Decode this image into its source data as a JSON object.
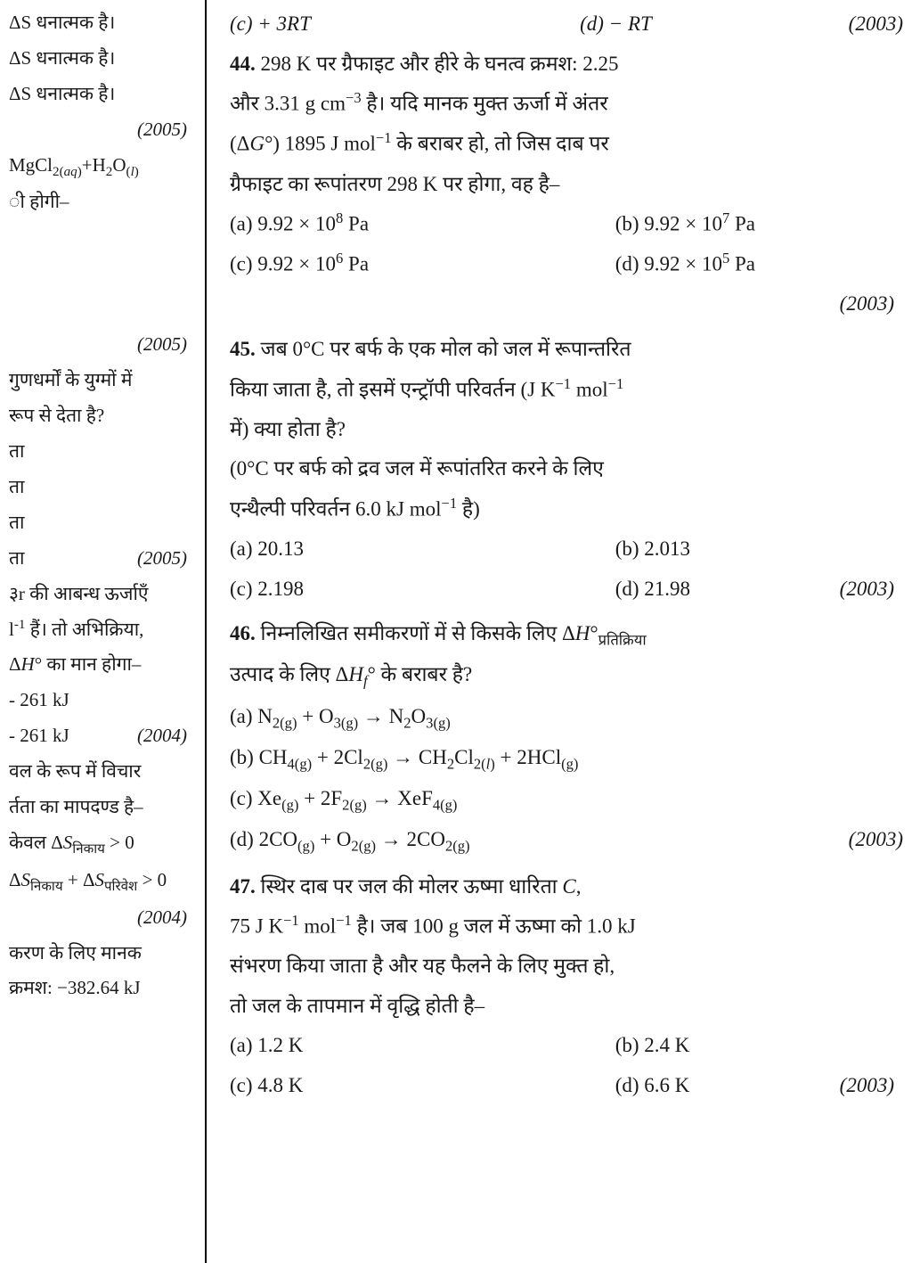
{
  "leftCol": {
    "l1": "ΔS धनात्मक है।",
    "l2": "ΔS धनात्मक है।",
    "l3": "ΔS धनात्मक है।",
    "yr1": "(2005)",
    "l4_html": "MgCl<sub>2(<span class='italic'>aq</span>)</sub>+H<sub>2</sub>O<sub>(<span class='italic'>l</span>)</sub>",
    "l5": "ी होगी–",
    "yr2": "(2005)",
    "l6": " गुणधर्मों के युग्मों में",
    "l7": "रूप से देता है?",
    "l8": "ता",
    "l9": "ता",
    "l10": "ता",
    "l11": "ता",
    "yr3": "(2005)",
    "l12": "३r की आबन्ध ऊर्जाएँ",
    "l13_html": "l<sup>-1</sup> हैं। तो अभिक्रिया,",
    "l14_html": "Δ<span class='italic'>H</span>° का मान होगा–",
    "l15": "- 261 kJ",
    "l16": "- 261 kJ",
    "yr4": "(2004)",
    "l17": "वल के रूप में विचार",
    "l18": "र्तता का मापदण्ड है–",
    "l19_html": "केवल Δ<span class='italic'>S</span><sub>निकाय</sub> > 0",
    "l20_html": "Δ<span class='italic'>S</span><sub>निकाय</sub> + Δ<span class='italic'>S</span><sub>परिवेश</sub> > 0",
    "yr5": "(2004)",
    "l21": "करण के लिए मानक",
    "l22": "क्रमश: −382.64 kJ"
  },
  "q43": {
    "c": "(c) + 3RT",
    "d": "(d) − RT",
    "yr": "(2003)"
  },
  "q44": {
    "num": "44.",
    "t1": "298 K पर ग्रैफाइट और हीरे के घनत्व क्रमश: 2.25",
    "t2_html": "और 3.31 g cm<sup>−3</sup> है। यदि मानक मुक्त ऊर्जा में अंतर",
    "t3_html": "(Δ<span class='italic'>G</span>°) 1895 J mol<sup>−1</sup> के बराबर हो, तो जिस दाब पर",
    "t4": "ग्रैफाइट का रूपांतरण 298 K पर होगा, वह है–",
    "a_html": "(a) 9.92 × 10<sup>8</sup> Pa",
    "b_html": "(b) 9.92 × 10<sup>7</sup> Pa",
    "c_html": "(c) 9.92 × 10<sup>6</sup> Pa",
    "d_html": "(d) 9.92 × 10<sup>5</sup> Pa",
    "yr": "(2003)"
  },
  "q45": {
    "num": "45.",
    "t1": "जब 0°C पर बर्फ के एक मोल को जल में रूपान्तरित",
    "t2_html": "किया जाता है, तो इसमें एन्ट्रॉपी परिवर्तन (J K<sup>−1</sup> mol<sup>−1</sup>",
    "t3": "में) क्या होता है?",
    "t4": "(0°C पर बर्फ को द्रव जल में रूपांतरित करने के लिए",
    "t5_html": "एन्थैल्पी परिवर्तन 6.0 kJ mol<sup>−1</sup> है)",
    "a": "(a) 20.13",
    "b": "(b) 2.013",
    "c": "(c) 2.198",
    "d": "(d) 21.98",
    "yr": "(2003)"
  },
  "q46": {
    "num": "46.",
    "t1_html": "निम्नलिखित समीकरणों में से किसके लिए Δ<span class='italic'>H</span>°<sub>प्रतिक्रिया</sub>",
    "t2_html": "उत्पाद के लिए Δ<span class='italic'>H</span><sub><span class='italic'>f</span></sub>° के बराबर है?",
    "a_html": "(a) N<sub>2(g)</sub> + O<sub>3(g)</sub> → N<sub>2</sub>O<sub>3(g)</sub>",
    "b_html": "(b) CH<sub>4(g)</sub> + 2Cl<sub>2(g)</sub> → CH<sub>2</sub>Cl<sub>2(<span class='italic'>l</span>)</sub> + 2HCl<sub>(g)</sub>",
    "c_html": "(c) Xe<sub>(g)</sub> + 2F<sub>2(g)</sub> → XeF<sub>4(g)</sub>",
    "d_html": "(d) 2CO<sub>(g)</sub> + O<sub>2(g)</sub> → 2CO<sub>2(g)</sub>",
    "yr": "(2003)"
  },
  "q47": {
    "num": "47.",
    "t1_html": "स्थिर दाब पर जल की मोलर ऊष्मा धारिता <span class='italic'>C</span>,",
    "t2_html": "75 J K<sup>−1</sup> mol<sup>−1</sup> है। जब 100 g जल में ऊष्मा को 1.0 kJ",
    "t3": "संभरण किया जाता है और यह फैलने के लिए मुक्त हो,",
    "t4": "तो जल के तापमान में वृद्धि होती है–",
    "a": "(a) 1.2 K",
    "b": "(b) 2.4 K",
    "c": "(c) 4.8 K",
    "d": "(d) 6.6 K",
    "yr": "(2003)"
  }
}
